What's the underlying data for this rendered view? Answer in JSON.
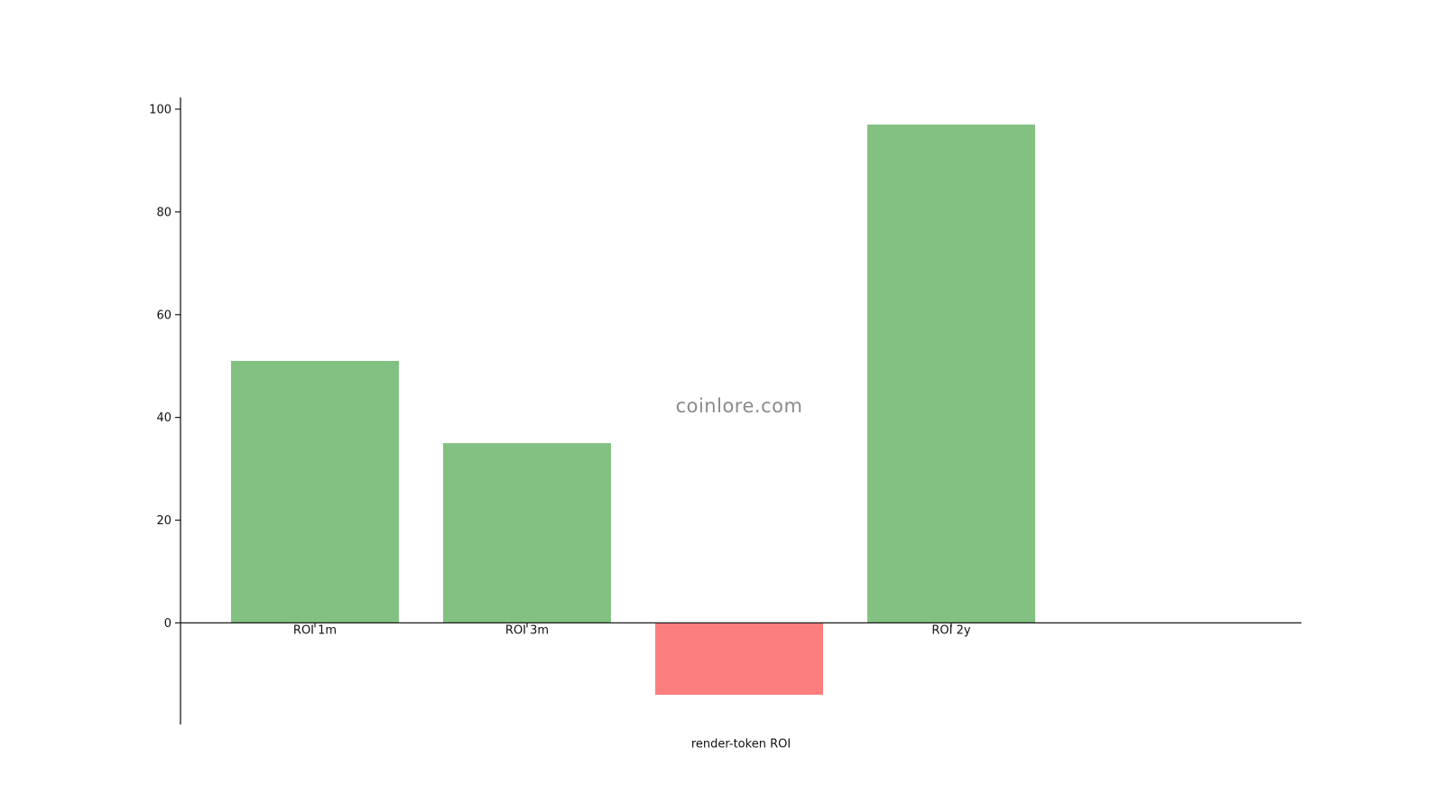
{
  "page": {
    "background": "#ffffff"
  },
  "watermark": {
    "text": "coinlore.com",
    "color": "#8a8a8a"
  },
  "chart_data": {
    "type": "bar",
    "title": "render-token ROI",
    "categories": [
      "ROI 1m",
      "ROI 3m",
      "",
      "ROI 2y"
    ],
    "values": [
      51,
      35,
      -14,
      97
    ],
    "bar_colors": [
      "#82c182",
      "#82c182",
      "#fc7e7e",
      "#82c182"
    ],
    "positive_color": "#82c182",
    "negative_color": "#fc7e7e",
    "yticks": [
      0,
      20,
      40,
      60,
      80,
      100
    ],
    "ylim": [
      -19.8,
      102.3
    ],
    "xlabel": "",
    "ylabel": "",
    "grid": false,
    "legend_position": "none",
    "axis_color": "#1a1a1a",
    "tick_label_color": "#111111"
  }
}
